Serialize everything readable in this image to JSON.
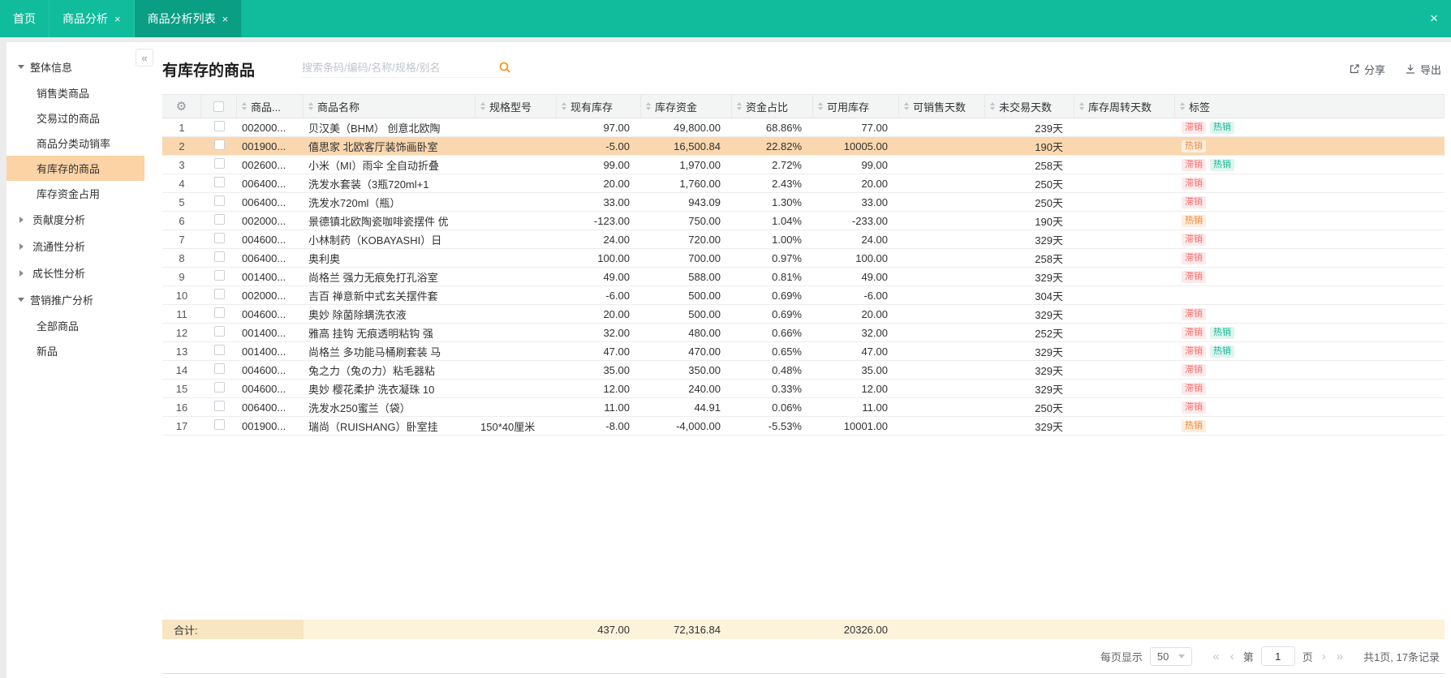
{
  "icons": {
    "gear": "⚙",
    "tab_close": "×",
    "window_close": "×",
    "pager_first": "«",
    "pager_prev": "‹",
    "pager_next": "›",
    "pager_last": "»"
  },
  "colors": {
    "topbar": "#10bc9c",
    "topbar_active_tab": "#0a9e85",
    "highlighted_row": "#fad7ae",
    "sidebar_selected": "#fbd3a4",
    "tag_red": "#f56c6c",
    "tag_teal": "#13b795",
    "tag_orange": "#f0883a",
    "accent_orange": "#ff8a00"
  },
  "topbar": {
    "tabs": [
      {
        "label": "首页",
        "closable": false,
        "active": false
      },
      {
        "label": "商品分析",
        "closable": true,
        "active": false
      },
      {
        "label": "商品分析列表",
        "closable": true,
        "active": true
      }
    ]
  },
  "sidebar": {
    "collapse_icon": "«",
    "groups": [
      {
        "label": "整体信息",
        "expanded": true,
        "selected_child": "有库存的商品",
        "children": [
          "销售类商品",
          "交易过的商品",
          "商品分类动销率",
          "有库存的商品",
          "库存资金占用"
        ]
      },
      {
        "label": "贡献度分析",
        "expanded": false,
        "selected_child": "",
        "children": []
      },
      {
        "label": "流通性分析",
        "expanded": false,
        "selected_child": "",
        "children": []
      },
      {
        "label": "成长性分析",
        "expanded": false,
        "selected_child": "",
        "children": []
      },
      {
        "label": "营销推广分析",
        "expanded": true,
        "selected_child": "",
        "children": [
          "全部商品",
          "新品"
        ]
      }
    ]
  },
  "main": {
    "title": "有库存的商品",
    "search_placeholder": "搜索条码/编码/名称/规格/别名",
    "actions": [
      {
        "label": "分享"
      },
      {
        "label": "导出"
      }
    ]
  },
  "table": {
    "columns": [
      "商品...",
      "商品名称",
      "规格型号",
      "现有库存",
      "库存资金",
      "资金占比",
      "可用库存",
      "可销售天数",
      "未交易天数",
      "库存周转天数",
      "标签"
    ],
    "rows": [
      {
        "seq": "1",
        "code": "002000...",
        "name": "贝汉美（BHM） 创意北欧陶",
        "spec": "",
        "stock": "97.00",
        "fund": "49,800.00",
        "ratio": "68.86%",
        "available": "77.00",
        "sellable_days": "",
        "no_trade_days": "239天",
        "turnover_days": "",
        "tags": [
          {
            "label": "滞销",
            "color": "red"
          },
          {
            "label": "热销",
            "color": "teal"
          }
        ],
        "highlighted": false
      },
      {
        "seq": "2",
        "code": "001900...",
        "name": "僖思家 北欧客厅装饰画卧室",
        "spec": "",
        "stock": "-5.00",
        "fund": "16,500.84",
        "ratio": "22.82%",
        "available": "10005.00",
        "sellable_days": "",
        "no_trade_days": "190天",
        "turnover_days": "",
        "tags": [
          {
            "label": "热销",
            "color": "orange"
          }
        ],
        "highlighted": true
      },
      {
        "seq": "3",
        "code": "002600...",
        "name": "小米（MI）雨伞 全自动折叠",
        "spec": "",
        "stock": "99.00",
        "fund": "1,970.00",
        "ratio": "2.72%",
        "available": "99.00",
        "sellable_days": "",
        "no_trade_days": "258天",
        "turnover_days": "",
        "tags": [
          {
            "label": "滞销",
            "color": "red"
          },
          {
            "label": "热销",
            "color": "teal"
          }
        ],
        "highlighted": false
      },
      {
        "seq": "4",
        "code": "006400...",
        "name": "洗发水套装（3瓶720ml+1",
        "spec": "",
        "stock": "20.00",
        "fund": "1,760.00",
        "ratio": "2.43%",
        "available": "20.00",
        "sellable_days": "",
        "no_trade_days": "250天",
        "turnover_days": "",
        "tags": [
          {
            "label": "滞销",
            "color": "red"
          }
        ],
        "highlighted": false
      },
      {
        "seq": "5",
        "code": "006400...",
        "name": "洗发水720ml（瓶）",
        "spec": "",
        "stock": "33.00",
        "fund": "943.09",
        "ratio": "1.30%",
        "available": "33.00",
        "sellable_days": "",
        "no_trade_days": "250天",
        "turnover_days": "",
        "tags": [
          {
            "label": "滞销",
            "color": "red"
          }
        ],
        "highlighted": false
      },
      {
        "seq": "6",
        "code": "002000...",
        "name": "景德镇北欧陶瓷咖啡瓷摆件 优",
        "spec": "",
        "stock": "-123.00",
        "fund": "750.00",
        "ratio": "1.04%",
        "available": "-233.00",
        "sellable_days": "",
        "no_trade_days": "190天",
        "turnover_days": "",
        "tags": [
          {
            "label": "热销",
            "color": "orange"
          }
        ],
        "highlighted": false
      },
      {
        "seq": "7",
        "code": "004600...",
        "name": "小林制药（KOBAYASHI）日",
        "spec": "",
        "stock": "24.00",
        "fund": "720.00",
        "ratio": "1.00%",
        "available": "24.00",
        "sellable_days": "",
        "no_trade_days": "329天",
        "turnover_days": "",
        "tags": [
          {
            "label": "滞销",
            "color": "red"
          }
        ],
        "highlighted": false
      },
      {
        "seq": "8",
        "code": "006400...",
        "name": "奥利奥",
        "spec": "",
        "stock": "100.00",
        "fund": "700.00",
        "ratio": "0.97%",
        "available": "100.00",
        "sellable_days": "",
        "no_trade_days": "258天",
        "turnover_days": "",
        "tags": [
          {
            "label": "滞销",
            "color": "red"
          }
        ],
        "highlighted": false
      },
      {
        "seq": "9",
        "code": "001400...",
        "name": "尚格兰 强力无痕免打孔浴室",
        "spec": "",
        "stock": "49.00",
        "fund": "588.00",
        "ratio": "0.81%",
        "available": "49.00",
        "sellable_days": "",
        "no_trade_days": "329天",
        "turnover_days": "",
        "tags": [
          {
            "label": "滞销",
            "color": "red"
          }
        ],
        "highlighted": false
      },
      {
        "seq": "10",
        "code": "002000...",
        "name": "吉百 禅意新中式玄关摆件套",
        "spec": "",
        "stock": "-6.00",
        "fund": "500.00",
        "ratio": "0.69%",
        "available": "-6.00",
        "sellable_days": "",
        "no_trade_days": "304天",
        "turnover_days": "",
        "tags": [],
        "highlighted": false
      },
      {
        "seq": "11",
        "code": "004600...",
        "name": "奥妙 除菌除螨洗衣液",
        "spec": "",
        "stock": "20.00",
        "fund": "500.00",
        "ratio": "0.69%",
        "available": "20.00",
        "sellable_days": "",
        "no_trade_days": "329天",
        "turnover_days": "",
        "tags": [
          {
            "label": "滞销",
            "color": "red"
          }
        ],
        "highlighted": false
      },
      {
        "seq": "12",
        "code": "001400...",
        "name": "雅高 挂钩 无痕透明粘钩 强",
        "spec": "",
        "stock": "32.00",
        "fund": "480.00",
        "ratio": "0.66%",
        "available": "32.00",
        "sellable_days": "",
        "no_trade_days": "252天",
        "turnover_days": "",
        "tags": [
          {
            "label": "滞销",
            "color": "red"
          },
          {
            "label": "热销",
            "color": "teal"
          }
        ],
        "highlighted": false
      },
      {
        "seq": "13",
        "code": "001400...",
        "name": "尚格兰 多功能马桶刷套装 马",
        "spec": "",
        "stock": "47.00",
        "fund": "470.00",
        "ratio": "0.65%",
        "available": "47.00",
        "sellable_days": "",
        "no_trade_days": "329天",
        "turnover_days": "",
        "tags": [
          {
            "label": "滞销",
            "color": "red"
          },
          {
            "label": "热销",
            "color": "teal"
          }
        ],
        "highlighted": false
      },
      {
        "seq": "14",
        "code": "004600...",
        "name": "兔之力（兔の力）粘毛器粘",
        "spec": "",
        "stock": "35.00",
        "fund": "350.00",
        "ratio": "0.48%",
        "available": "35.00",
        "sellable_days": "",
        "no_trade_days": "329天",
        "turnover_days": "",
        "tags": [
          {
            "label": "滞销",
            "color": "red"
          }
        ],
        "highlighted": false
      },
      {
        "seq": "15",
        "code": "004600...",
        "name": "奥妙 樱花柔护 洗衣凝珠 10",
        "spec": "",
        "stock": "12.00",
        "fund": "240.00",
        "ratio": "0.33%",
        "available": "12.00",
        "sellable_days": "",
        "no_trade_days": "329天",
        "turnover_days": "",
        "tags": [
          {
            "label": "滞销",
            "color": "red"
          }
        ],
        "highlighted": false
      },
      {
        "seq": "16",
        "code": "006400...",
        "name": "洗发水250蜜兰（袋）",
        "spec": "",
        "stock": "11.00",
        "fund": "44.91",
        "ratio": "0.06%",
        "available": "11.00",
        "sellable_days": "",
        "no_trade_days": "250天",
        "turnover_days": "",
        "tags": [
          {
            "label": "滞销",
            "color": "red"
          }
        ],
        "highlighted": false
      },
      {
        "seq": "17",
        "code": "001900...",
        "name": "瑞尚（RUISHANG）卧室挂",
        "spec": "150*40厘米",
        "stock": "-8.00",
        "fund": "-4,000.00",
        "ratio": "-5.53%",
        "available": "10001.00",
        "sellable_days": "",
        "no_trade_days": "329天",
        "turnover_days": "",
        "tags": [
          {
            "label": "热销",
            "color": "orange"
          }
        ],
        "highlighted": false
      }
    ],
    "summary": {
      "label": "合计:",
      "stock_total": "437.00",
      "fund_total": "72,316.84",
      "available_total": "20326.00"
    }
  },
  "pagination": {
    "page_size_label": "每页显示",
    "page_size": "50",
    "page_prefix": "第",
    "page_value": "1",
    "page_suffix": "页",
    "total_text": "共1页, 17条记录"
  }
}
